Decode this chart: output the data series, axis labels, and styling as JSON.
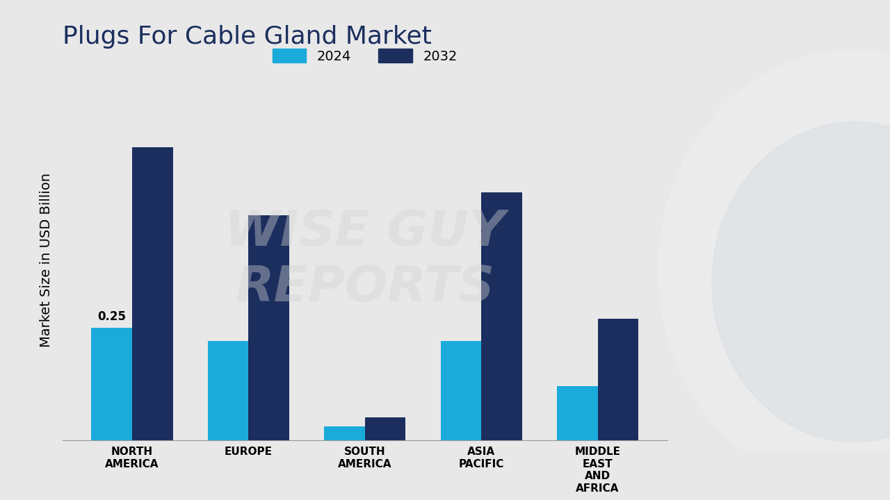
{
  "title": "Plugs For Cable Gland Market",
  "ylabel": "Market Size in USD Billion",
  "categories": [
    "NORTH\nAMERICA",
    "EUROPE",
    "SOUTH\nAMERICA",
    "ASIA\nPACIFIC",
    "MIDDLE\nEAST\nAND\nAFRICA"
  ],
  "values_2024": [
    0.25,
    0.22,
    0.03,
    0.22,
    0.12
  ],
  "values_2032": [
    0.65,
    0.5,
    0.05,
    0.55,
    0.27
  ],
  "color_2024": "#1AABDB",
  "color_2032": "#1B2E5E",
  "bar_annotation": "0.25",
  "bar_annotation_index": 0,
  "bar_annotation_year": "2024",
  "background_color": "#E8E8E8",
  "right_panel_color": "#1B2E5E",
  "title_color": "#1B2E5E",
  "legend_labels": [
    "2024",
    "2032"
  ],
  "title_fontsize": 26,
  "ylabel_fontsize": 14,
  "tick_fontsize": 11,
  "legend_fontsize": 14,
  "annotation_fontsize": 12
}
